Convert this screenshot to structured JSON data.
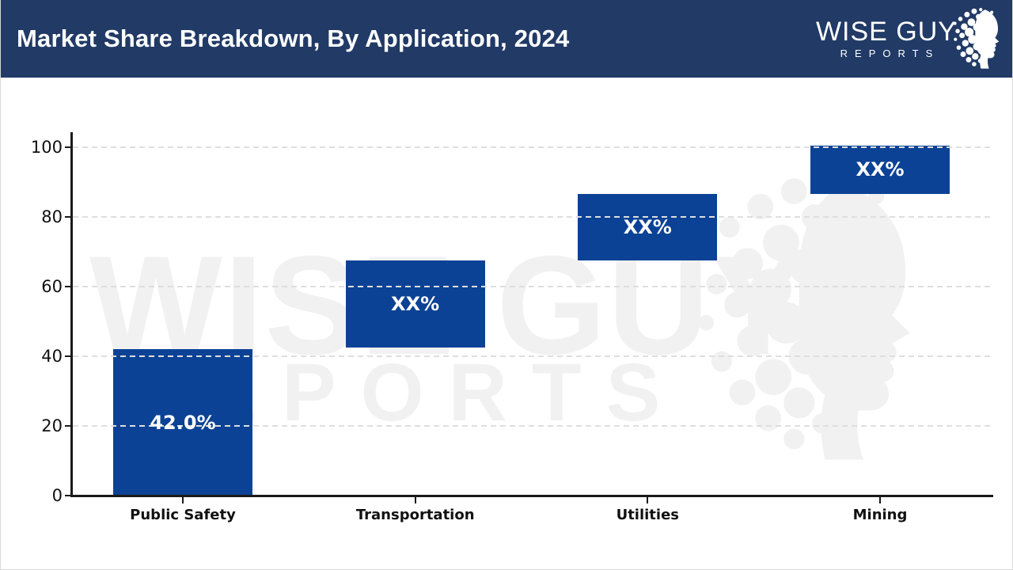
{
  "theme": {
    "header_bg": "#213a66",
    "bar_blue": "#0b4295",
    "watermark_gray": "#f1f1f1",
    "grid_gray": "#dedede",
    "axis_black": "#1a1a1a",
    "frame_gray": "#d9d9d9",
    "text_black": "#111111",
    "bar_label_white": "#ffffff"
  },
  "header": {
    "title": "Market Share Breakdown, By Application, 2024",
    "logo": {
      "name": "WISE GUY",
      "tagline": "REPORTS"
    }
  },
  "watermark": {
    "line1": "WISE GUY",
    "line2": "REPORTS"
  },
  "chart_data": {
    "type": "bar",
    "subtype": "waterfall",
    "title": "Market Share Breakdown, By Application, 2024",
    "categories": [
      "Public Safety",
      "Transportation",
      "Utilities",
      "Mining"
    ],
    "segments": [
      {
        "category": "Public Safety",
        "start": 0,
        "end": 42,
        "label": "42.0%"
      },
      {
        "category": "Transportation",
        "start": 42.4,
        "end": 67.5,
        "label": "XX%"
      },
      {
        "category": "Utilities",
        "start": 67.5,
        "end": 86.6,
        "label": "XX%"
      },
      {
        "category": "Mining",
        "start": 86.7,
        "end": 100.4,
        "label": "XX%"
      }
    ],
    "xlabel": "",
    "ylabel": "",
    "ylim": [
      0,
      105
    ],
    "yticks": [
      0,
      20,
      40,
      60,
      80,
      100
    ],
    "grid": {
      "axis": "y",
      "style": "dashed"
    },
    "legend": null,
    "bar_color": "#0b4295",
    "bar_label_color": "#ffffff"
  }
}
